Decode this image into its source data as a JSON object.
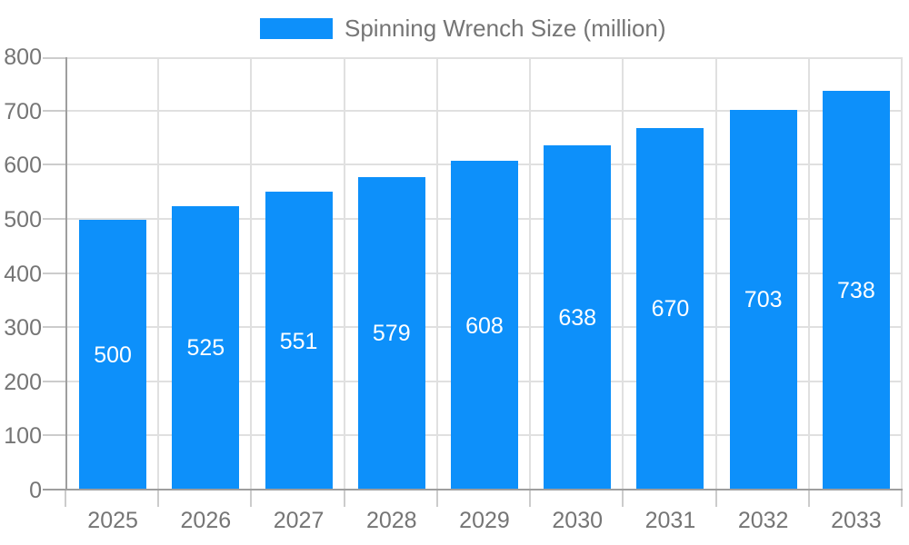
{
  "legend": {
    "position": "top-center",
    "items": [
      {
        "label": "Spinning Wrench Size (million)",
        "swatch_color": "#0d90fa"
      }
    ]
  },
  "chart_data": {
    "type": "bar",
    "title": "",
    "xlabel": "",
    "ylabel": "",
    "categories": [
      "2025",
      "2026",
      "2027",
      "2028",
      "2029",
      "2030",
      "2031",
      "2032",
      "2033"
    ],
    "series": [
      {
        "name": "Spinning Wrench Size (million)",
        "values": [
          500,
          525,
          551,
          579,
          608,
          638,
          670,
          703,
          738
        ]
      }
    ],
    "bar_value_labels": [
      "500",
      "525",
      "551",
      "579",
      "608",
      "638",
      "670",
      "703",
      "738"
    ],
    "ylim": [
      0,
      800
    ],
    "yticks": [
      0,
      100,
      200,
      300,
      400,
      500,
      600,
      700,
      800
    ],
    "grid": true,
    "legend_position": "top-center",
    "colors": {
      "bar": "#0d90fa",
      "bar_label": "#ffffff",
      "axis_line": "#9e9e9e",
      "gridline": "#e0e0e0",
      "tick": "#cccccc",
      "axis_text": "#757575"
    }
  }
}
